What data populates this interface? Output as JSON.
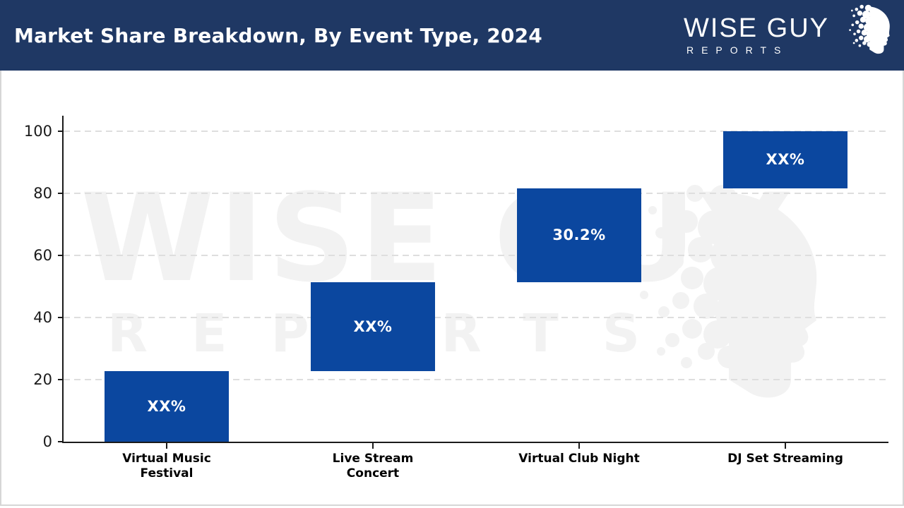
{
  "header": {
    "title": "Market Share Breakdown, By Event Type, 2024",
    "background_color": "#1F3864"
  },
  "logo": {
    "wordmark": "WISE GUY",
    "subtitle": "REPORTS"
  },
  "watermark": {
    "line1": "WISE GUY",
    "line2": "REPORTS"
  },
  "chart_data": {
    "type": "bar",
    "subtype": "waterfall",
    "title": "Market Share Breakdown, By Event Type, 2024",
    "categories": [
      "Virtual Music Festival",
      "Live Stream Concert",
      "Virtual Club Night",
      "DJ Set Streaming"
    ],
    "category_label_lines": [
      [
        "Virtual Music",
        "Festival"
      ],
      [
        "Live Stream",
        "Concert"
      ],
      [
        "Virtual Club Night"
      ],
      [
        "DJ Set Streaming"
      ]
    ],
    "values": [
      22.7,
      28.7,
      30.2,
      18.4
    ],
    "cumulative_starts": [
      0,
      22.7,
      51.4,
      81.6
    ],
    "bar_labels": [
      "XX%",
      "XX%",
      "30.2%",
      "XX%"
    ],
    "yticks": [
      0,
      20,
      40,
      60,
      80,
      100
    ],
    "ylim": [
      0,
      105
    ],
    "xlabel": "",
    "ylabel": "",
    "legend": "none",
    "grid": "horizontal-dashed",
    "bar_color": "#0B479F",
    "bar_label_color": "#ffffff",
    "axis_color": "#1a1a1a",
    "gridline_color": "#dedede"
  }
}
